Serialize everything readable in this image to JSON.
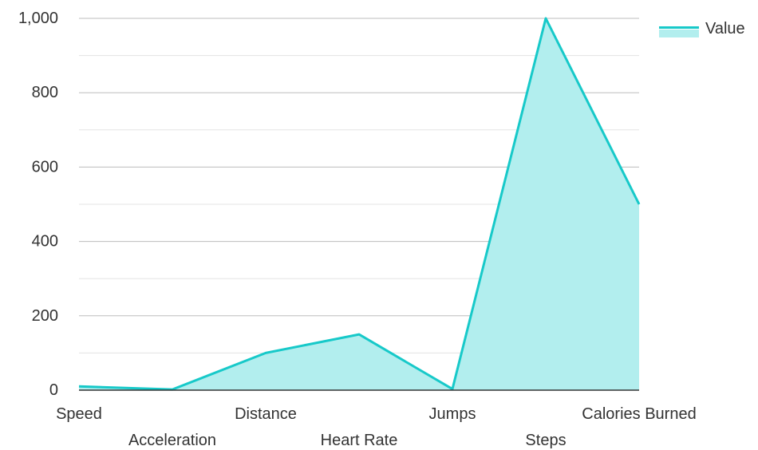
{
  "chart_data": {
    "type": "area",
    "categories": [
      "Speed",
      "Acceleration",
      "Distance",
      "Heart Rate",
      "Jumps",
      "Steps",
      "Calories Burned"
    ],
    "series": [
      {
        "name": "Value",
        "values": [
          10,
          2,
          100,
          150,
          3,
          1000,
          500
        ]
      }
    ],
    "ylim": [
      0,
      1000
    ],
    "yticks": [
      0,
      200,
      400,
      600,
      800,
      1000
    ],
    "ytick_labels": [
      "0",
      "200",
      "400",
      "600",
      "800",
      "1,000"
    ],
    "grid": true,
    "legend": {
      "position": "top-right",
      "entries": [
        "Value"
      ]
    },
    "colors": {
      "line": "#17c9c9",
      "fill": "#b2eeee"
    }
  }
}
